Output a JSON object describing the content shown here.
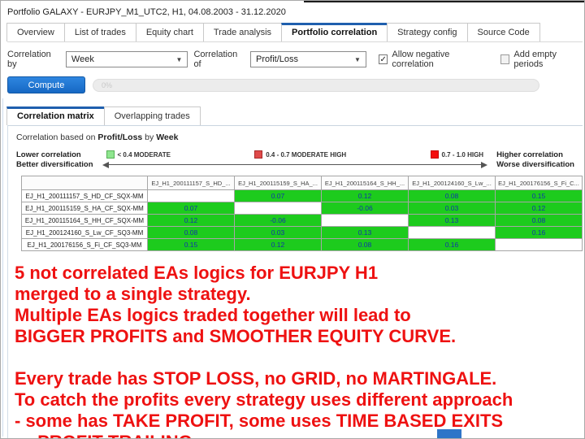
{
  "window": {
    "title": "Portfolio GALAXY - EURJPY_M1_UTC2, H1, 04.08.2003 - 31.12.2020"
  },
  "tabs": [
    {
      "label": "Overview"
    },
    {
      "label": "List of trades"
    },
    {
      "label": "Equity chart"
    },
    {
      "label": "Trade analysis"
    },
    {
      "label": "Portfolio correlation"
    },
    {
      "label": "Strategy config"
    },
    {
      "label": "Source Code"
    }
  ],
  "active_tab": "Portfolio correlation",
  "controls": {
    "correlation_by_label": "Correlation by",
    "correlation_by_value": "Week",
    "correlation_of_label": "Correlation of",
    "correlation_of_value": "Profit/Loss",
    "allow_negative_label": "Allow negative correlation",
    "allow_negative_checked": true,
    "check_glyph": "✓",
    "add_empty_label": "Add empty periods",
    "add_empty_checked": false,
    "compute_label": "Compute",
    "progress_text": "0%"
  },
  "subtabs": [
    {
      "label": "Correlation matrix"
    },
    {
      "label": "Overlapping trades"
    }
  ],
  "active_subtab": "Correlation matrix",
  "note": {
    "prefix": "Correlation based on",
    "bold1": "Profit/Loss",
    "mid": "by",
    "bold2": "Week"
  },
  "legend": {
    "left_line1": "Lower correlation",
    "left_line2": "Better diversification",
    "right_line1": "Higher correlation",
    "right_line2": "Worse diversification",
    "items": [
      {
        "color": "#8fe68f",
        "border": "#56b056",
        "label": "< 0.4 MODERATE"
      },
      {
        "color": "#df4a4a",
        "border": "#a82828",
        "label": "0.4 - 0.7 MODERATE HIGH"
      },
      {
        "color": "#f40d0d",
        "border": "#c80000",
        "label": "0.7 - 1.0 HIGH"
      }
    ]
  },
  "matrix": {
    "cell_green": "#1dcb1d",
    "col_headers": [
      "EJ_H1_200111157_S_HD_...",
      "EJ_H1_200115159_S_HA_...",
      "EJ_H1_200115164_S_HH_...",
      "EJ_H1_200124160_S_Lw_...",
      "EJ_H1_200176156_S_Fi_C..."
    ],
    "rows": [
      {
        "label": "EJ_H1_200111157_S_HD_CF_SQX-MM",
        "values": [
          "",
          "0.07",
          "0.12",
          "0.08",
          "0.15"
        ]
      },
      {
        "label": "EJ_H1_200115159_S_HA_CF_SQX-MM",
        "values": [
          "0.07",
          "",
          "-0.06",
          "0.03",
          "0.12"
        ]
      },
      {
        "label": "EJ_H1_200115164_S_HH_CF_SQX-MM",
        "values": [
          "0.12",
          "-0.06",
          "",
          "0.13",
          "0.08"
        ]
      },
      {
        "label": "EJ_H1_200124160_S_Lw_CF_SQ3-MM",
        "values": [
          "0.08",
          "0.03",
          "0.13",
          "",
          "0.16"
        ]
      },
      {
        "label": "EJ_H1_200176156_S_Fi_CF_SQ3-MM",
        "values": [
          "0.15",
          "0.12",
          "0.08",
          "0.16",
          ""
        ]
      }
    ]
  },
  "annotation": {
    "color": "#ee1111",
    "block1": [
      "5 not correlated EAs logics for EURJPY H1",
      "merged to a single strategy.",
      "Multiple EAs logics traded together will lead to",
      "BIGGER PROFITS and SMOOTHER EQUITY CURVE."
    ],
    "block2": [
      "Every trade has STOP LOSS, no GRID, no MARTINGALE.",
      "To catch the profits every strategy uses different approach",
      "- some has TAKE PROFIT, some uses TIME BASED EXITS",
      "or PROFIT TRAILING."
    ]
  }
}
